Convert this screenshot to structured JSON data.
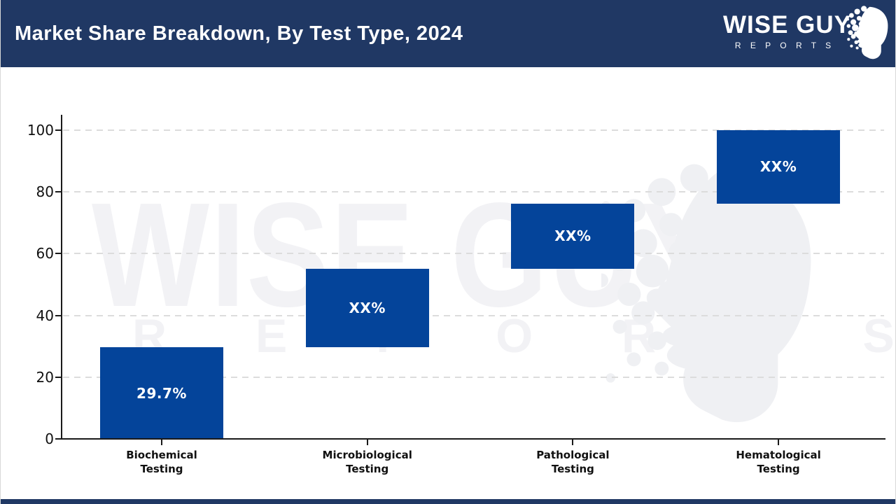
{
  "header": {
    "title": "Market Share Breakdown, By Test Type, 2024",
    "logo_line1": "WISE GUY",
    "logo_line2": "R E P O R T S",
    "bg_color": "#203864"
  },
  "watermark": {
    "line1": "WISE GUY",
    "line2": "R E P O R T S"
  },
  "icons": {
    "header_logo_face": "face-profile-dots-icon",
    "watermark_face": "face-profile-dots-icon"
  },
  "footer": {
    "bg_color": "#203864"
  },
  "chart_data": {
    "type": "bar",
    "variant": "waterfall",
    "title": "Market Share Breakdown, By Test Type, 2024",
    "categories": [
      "Biochemical Testing",
      "Microbiological Testing",
      "Pathological Testing",
      "Hematological Testing"
    ],
    "category_lines": [
      [
        "Biochemical",
        "Testing"
      ],
      [
        "Microbiological",
        "Testing"
      ],
      [
        "Pathological",
        "Testing"
      ],
      [
        "Hematological",
        "Testing"
      ]
    ],
    "segments": [
      {
        "start": 0,
        "end": 29.7,
        "label": "29.7%"
      },
      {
        "start": 29.7,
        "end": 55.1,
        "label": "XX%"
      },
      {
        "start": 55.1,
        "end": 76.2,
        "label": "XX%"
      },
      {
        "start": 76.2,
        "end": 100,
        "label": "XX%"
      }
    ],
    "bar_color": "#04449a",
    "label_color": "#ffffff",
    "yticks": [
      0,
      20,
      40,
      60,
      80,
      100
    ],
    "ylim": [
      0,
      107
    ],
    "grid": "horizontal-dashed",
    "gridline_color": "#dcdcdc",
    "axis_color": "#1a1a1a",
    "legend": "none",
    "xlabel": "",
    "ylabel": ""
  }
}
